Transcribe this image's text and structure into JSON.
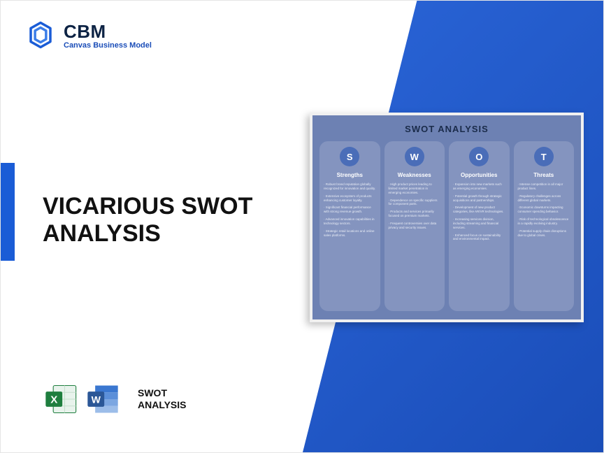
{
  "logo": {
    "abbr": "CBM",
    "subtitle": "Canvas Business Model",
    "icon_color": "#1a5cd6"
  },
  "wedge": {
    "gradient_from": "#2a65d8",
    "gradient_to": "#1a4db8"
  },
  "left_bar_color": "#1a5cd6",
  "title_line1": "VICARIOUS SWOT",
  "title_line2": "ANALYSIS",
  "files": {
    "label_line1": "SWOT",
    "label_line2": "ANALYSIS",
    "excel_color": "#1e7e3e",
    "word_color": "#2b5797"
  },
  "swot": {
    "card_title": "SWOT ANALYSIS",
    "card_bg": "#6d81b3",
    "col_bg": "#8494bf",
    "circle_bg": "#4a6db8",
    "columns": [
      {
        "letter": "S",
        "heading": "Strengths",
        "items": [
          "Robust brand reputation globally recognized for innovation and quality.",
          "Extensive ecosystem of products enhancing customer loyalty.",
          "Significant financial performance with strong revenue growth.",
          "Advanced innovation capabilities in technology sectors.",
          "Strategic retail locations and online sales platforms."
        ]
      },
      {
        "letter": "W",
        "heading": "Weaknesses",
        "items": [
          "High product prices leading to limited market penetration in emerging economies.",
          "Dependence on specific suppliers for component parts.",
          "Products and services primarily focused on premium markets.",
          "Frequent controversies over data privacy and security issues."
        ]
      },
      {
        "letter": "O",
        "heading": "Opportunities",
        "items": [
          "Expansion into new markets such as emerging economies.",
          "Potential growth through strategic acquisitions and partnerships.",
          "Development of new product categories, like AR/VR technologies.",
          "Increasing services division, including streaming and financial services.",
          "Enhanced focus on sustainability and environmental impact."
        ]
      },
      {
        "letter": "T",
        "heading": "Threats",
        "items": [
          "Intense competition in all major product lines.",
          "Regulatory challenges across different global markets.",
          "Economic downturns impacting consumer spending behavior.",
          "Risk of technological obsolescence in a rapidly evolving industry.",
          "Potential supply chain disruptions due to global crises."
        ]
      }
    ]
  }
}
